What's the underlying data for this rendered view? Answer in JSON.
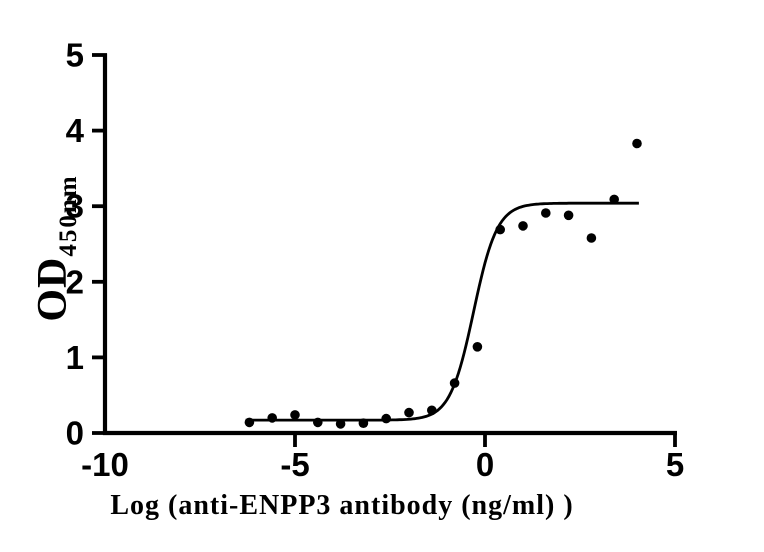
{
  "chart_data": {
    "type": "scatter",
    "title": "",
    "xlabel": "Log (anti-ENPP3 antibody (ng/ml)  )",
    "ylabel_main": "OD",
    "ylabel_sub": "450nm",
    "grid": false,
    "legend": null,
    "marker": "filled-circle",
    "colors": {
      "foreground": "#000000",
      "background": "#ffffff"
    },
    "x_axis": {
      "min": -10,
      "max": 5,
      "ticks": [
        -10,
        -5,
        0,
        5
      ],
      "tick_labels": [
        "-10",
        "-5",
        "0",
        "5"
      ]
    },
    "y_axis": {
      "min": 0,
      "max": 5,
      "ticks": [
        0,
        1,
        2,
        3,
        4,
        5
      ],
      "tick_labels": [
        "0",
        "1",
        "2",
        "3",
        "4",
        "5"
      ]
    },
    "points": [
      {
        "x": -6.2,
        "y": 0.14
      },
      {
        "x": -5.6,
        "y": 0.2
      },
      {
        "x": -5.0,
        "y": 0.24
      },
      {
        "x": -4.4,
        "y": 0.14
      },
      {
        "x": -3.8,
        "y": 0.12
      },
      {
        "x": -3.2,
        "y": 0.13
      },
      {
        "x": -2.6,
        "y": 0.19
      },
      {
        "x": -2.0,
        "y": 0.27
      },
      {
        "x": -1.4,
        "y": 0.3
      },
      {
        "x": -0.8,
        "y": 0.66
      },
      {
        "x": -0.2,
        "y": 1.14
      },
      {
        "x": 0.4,
        "y": 2.69
      },
      {
        "x": 1.0,
        "y": 2.74
      },
      {
        "x": 1.6,
        "y": 2.91
      },
      {
        "x": 2.2,
        "y": 2.88
      },
      {
        "x": 2.8,
        "y": 2.58
      },
      {
        "x": 3.4,
        "y": 3.09
      },
      {
        "x": 4.0,
        "y": 3.83
      }
    ],
    "fit_curve": {
      "model": "4PL-sigmoid",
      "bottom": 0.17,
      "top": 3.04,
      "log_ec50": -0.3,
      "hill_slope": 1.4,
      "x_start": -6.3,
      "x_end": 4.05
    }
  }
}
